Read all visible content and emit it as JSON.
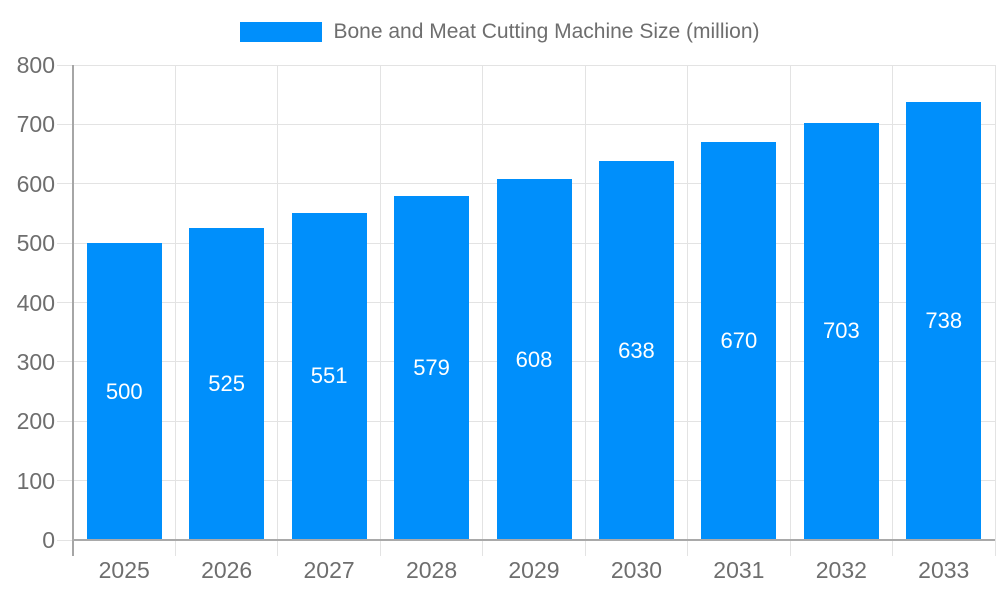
{
  "chart_data": {
    "type": "bar",
    "title": "Bone and Meat Cutting Machine Size (million)",
    "categories": [
      "2025",
      "2026",
      "2027",
      "2028",
      "2029",
      "2030",
      "2031",
      "2032",
      "2033"
    ],
    "values": [
      500,
      525,
      551,
      579,
      608,
      638,
      670,
      703,
      738
    ],
    "value_labels": [
      "500",
      "525",
      "551",
      "579",
      "608",
      "638",
      "670",
      "703",
      "738"
    ],
    "xlabel": "",
    "ylabel": "",
    "ylim": [
      0,
      800
    ],
    "y_ticks": [
      0,
      100,
      200,
      300,
      400,
      500,
      600,
      700,
      800
    ],
    "grid": true,
    "legend_position": "top",
    "colors": {
      "bar": "#008FFB",
      "value_label": "#FFFFFF",
      "axis_text": "#6E6E6E",
      "gridline": "#E3E3E3",
      "axis_line": "#A6A6A6"
    }
  }
}
